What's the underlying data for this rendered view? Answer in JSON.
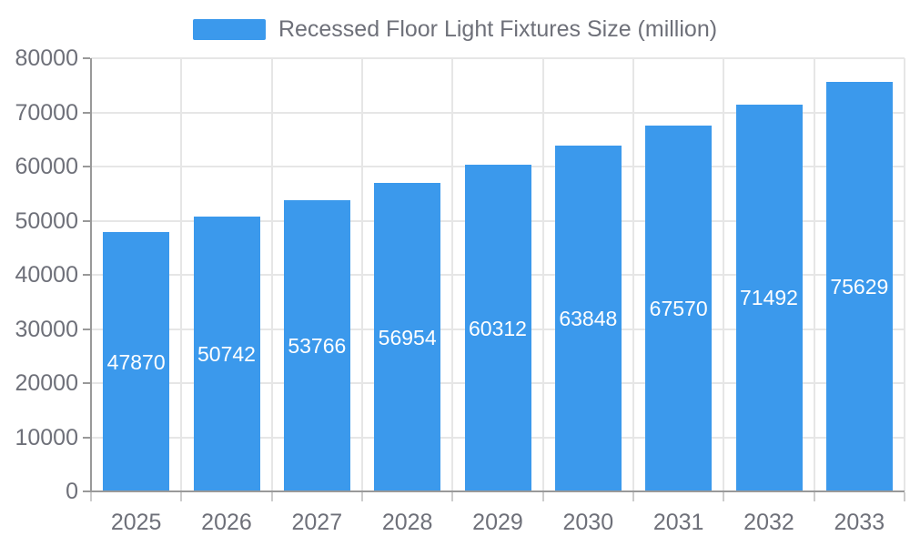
{
  "chart_data": {
    "type": "bar",
    "title": "",
    "legend": {
      "label": "Recessed Floor Light Fixtures Size (million)",
      "position": "top-center"
    },
    "categories": [
      "2025",
      "2026",
      "2027",
      "2028",
      "2029",
      "2030",
      "2031",
      "2032",
      "2033"
    ],
    "series": [
      {
        "name": "Recessed Floor Light Fixtures Size (million)",
        "values": [
          47870,
          50742,
          53766,
          56954,
          60312,
          63848,
          67570,
          71492,
          75629
        ]
      }
    ],
    "value_labels": [
      "47870",
      "50742",
      "53766",
      "56954",
      "60312",
      "63848",
      "67570",
      "71492",
      "75629"
    ],
    "xlabel": "",
    "ylabel": "",
    "ylim": [
      0,
      80000
    ],
    "ytick_step": 10000,
    "ytick_labels": [
      "0",
      "10000",
      "20000",
      "30000",
      "40000",
      "50000",
      "60000",
      "70000",
      "80000"
    ],
    "grid": {
      "horizontal": true,
      "vertical": true
    },
    "colors": {
      "bar": "#3B99EC",
      "value_label": "#FFFFFF",
      "axis_line": "#999999",
      "grid_line": "#E6E6E6",
      "x_tick": "#CCCCCC",
      "tick_text": "#6E7079",
      "legend_text": "#6E7079",
      "background": "#FFFFFF"
    }
  }
}
